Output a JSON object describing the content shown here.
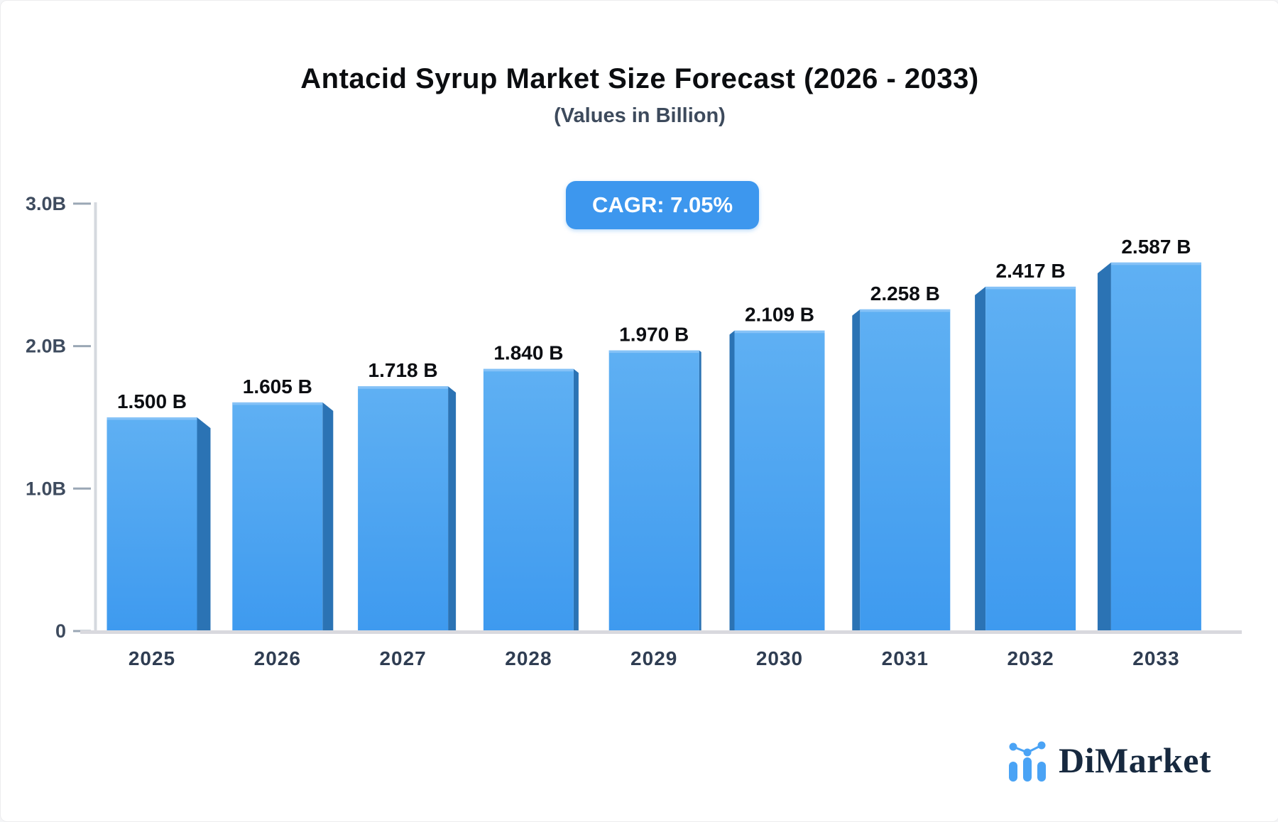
{
  "header": {
    "title": "Antacid Syrup Market Size Forecast (2026 - 2033)",
    "subtitle": "(Values in Billion)"
  },
  "badge": {
    "label": "CAGR: 7.05%",
    "bg_color": "#3d97ee",
    "text_color": "#ffffff"
  },
  "chart_data": {
    "type": "bar",
    "title": "Antacid Syrup Market Size Forecast (2026 - 2033)",
    "subtitle": "(Values in Billion)",
    "categories": [
      "2025",
      "2026",
      "2027",
      "2028",
      "2029",
      "2030",
      "2031",
      "2032",
      "2033"
    ],
    "values": [
      1.5,
      1.605,
      1.718,
      1.84,
      1.97,
      2.109,
      2.258,
      2.417,
      2.587
    ],
    "value_labels": [
      "1.500 B",
      "1.605 B",
      "1.718 B",
      "1.840 B",
      "1.970 B",
      "2.109 B",
      "2.258 B",
      "2.417 B",
      "2.587 B"
    ],
    "unit": "Billion",
    "xlabel": "",
    "ylabel": "",
    "ylim": [
      0,
      3.0
    ],
    "y_ticks": [
      {
        "value": 3.0,
        "label": "3.0B"
      },
      {
        "value": 2.0,
        "label": "2.0B"
      },
      {
        "value": 1.0,
        "label": "1.0B"
      },
      {
        "value": 0,
        "label": "0"
      }
    ],
    "grid": false,
    "legend": "none",
    "style": "pseudo-3d bars, side faces angled away from center",
    "colors": {
      "bar_face_top": "#5fb0f3",
      "bar_face_bottom": "#3e9aef",
      "bar_top_highlight": "#8cc6f7",
      "bar_side": "#2b73b4",
      "axis_line": "#d5d9df",
      "baseline": "#d9d9de",
      "tick_dash": "#9aa7b5",
      "tick_label": "#3e4b5e",
      "category_label": "#2f3d52",
      "value_label": "#0c0e12"
    }
  },
  "logo": {
    "text": "DiMarket",
    "icon": "mini-bar-chart-icon",
    "icon_color": "#4aa3f5",
    "text_color": "#17293f"
  }
}
